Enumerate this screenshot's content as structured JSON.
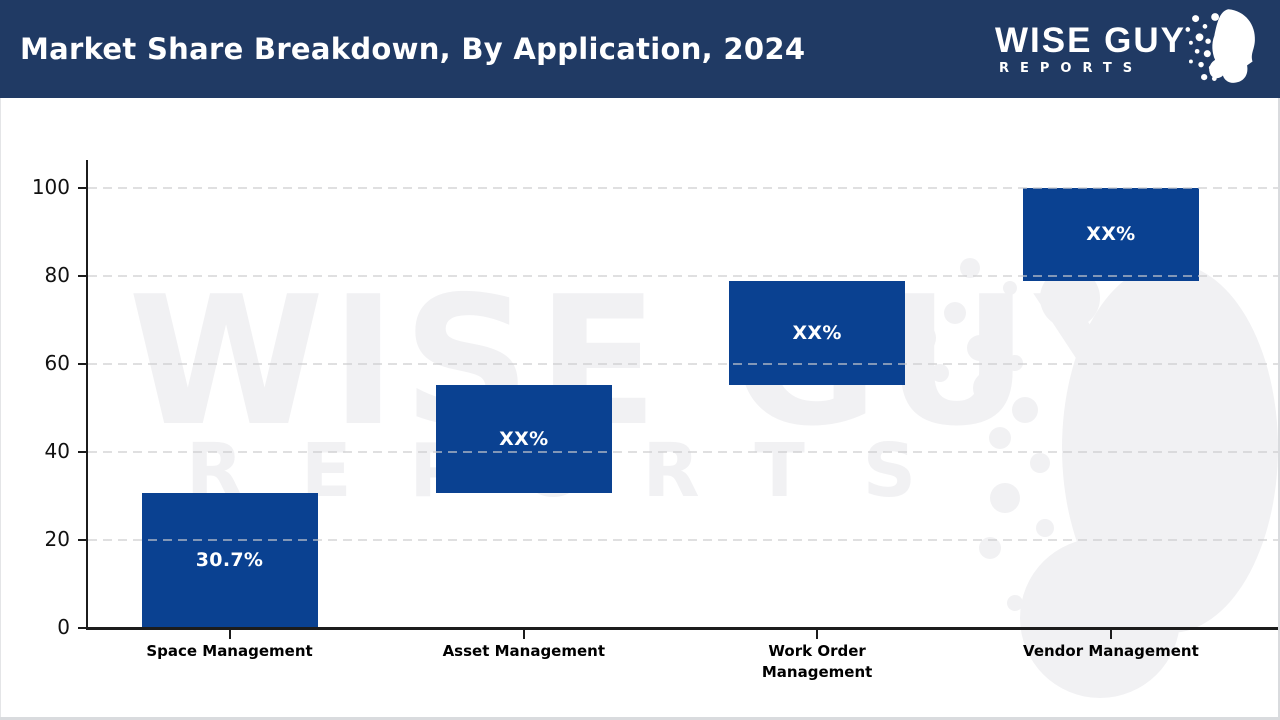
{
  "header": {
    "title": "Market Share Breakdown, By Application, 2024",
    "bg_color": "#203a64",
    "logo": {
      "wordmark": "WISE GUY",
      "subtext": "REPORTS"
    }
  },
  "watermark": {
    "wordmark": "WISE GUY",
    "subtext": "REPORTS"
  },
  "chart_data": {
    "type": "bar",
    "variant": "waterfall",
    "title": "Market Share Breakdown, By Application, 2024",
    "categories": [
      "Space Management",
      "Asset Management",
      "Work Order Management",
      "Vendor Management"
    ],
    "bar_labels": [
      "30.7%",
      "XX%",
      "XX%",
      "XX%"
    ],
    "segments": [
      {
        "start": 0,
        "end": 30.7
      },
      {
        "start": 30.7,
        "end": 55.2
      },
      {
        "start": 55.2,
        "end": 78.9
      },
      {
        "start": 78.9,
        "end": 100
      }
    ],
    "values_pct_estimated": [
      30.7,
      24.5,
      23.7,
      21.1
    ],
    "yticks": [
      0,
      20,
      40,
      60,
      80,
      100
    ],
    "ylim": [
      0,
      107
    ],
    "xlabel": "",
    "ylabel": "",
    "grid": "horizontal-dashed",
    "legend": "none",
    "bar_color": "#0a4191",
    "bar_label_color": "#ffffff",
    "axis_color": "#1c1c1c"
  }
}
